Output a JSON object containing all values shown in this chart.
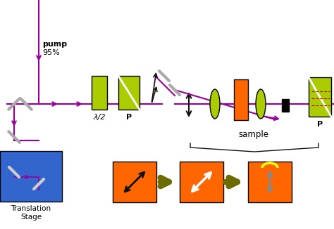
{
  "bg_color": "#ffffff",
  "purple": "#990099",
  "lime": "#aacc00",
  "orange": "#ff6600",
  "blue": "#3366cc",
  "olive": "#6b6b00",
  "dark": "#111111",
  "gray": "#888888",
  "pump_label": "pump",
  "pump_pct": "95%",
  "lambda_label": "λ/2",
  "P_label1": "P",
  "P_label2": "P",
  "sample_label": "sample",
  "trans_label": "Translation\nStage"
}
